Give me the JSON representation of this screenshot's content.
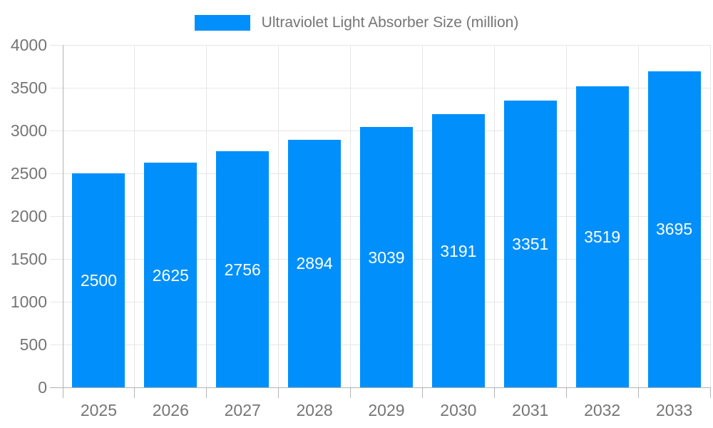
{
  "legend": {
    "label": "Ultraviolet Light Absorber Size (million)"
  },
  "chart_data": {
    "type": "bar",
    "title": "Ultraviolet Light Absorber Size (million)",
    "series_name": "Ultraviolet Light Absorber Size (million)",
    "categories": [
      "2025",
      "2026",
      "2027",
      "2028",
      "2029",
      "2030",
      "2031",
      "2032",
      "2033"
    ],
    "values": [
      2500,
      2625,
      2756,
      2894,
      3039,
      3191,
      3351,
      3519,
      3695
    ],
    "yticks": [
      0,
      500,
      1000,
      1500,
      2000,
      2500,
      3000,
      3500,
      4000
    ],
    "ylim": [
      0,
      4000
    ],
    "ytick_step": 500,
    "xlabel": "",
    "ylabel": "",
    "grid": true,
    "legend_position": "top",
    "data_labels": true,
    "colors": {
      "bar": "#008FFB",
      "bar_label": "#ffffff",
      "axis_text": "#757575",
      "grid_line": "#e7e7e7",
      "axis_line": "#b3b3b3"
    }
  }
}
